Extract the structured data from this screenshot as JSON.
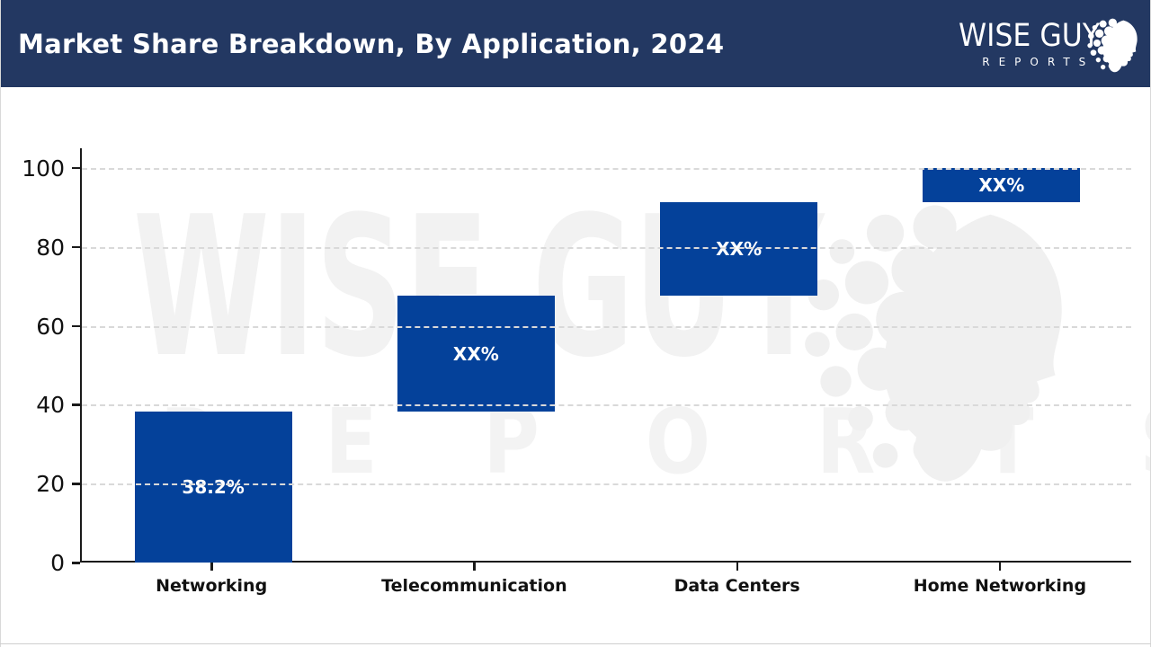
{
  "header": {
    "title": "Market Share Breakdown, By Application, 2024",
    "bg_color": "#233862",
    "logo": {
      "line1": "WISE GUY",
      "line2": "REPORTS"
    }
  },
  "watermark": {
    "line1": "WISE GUY",
    "line2": "REPORTS"
  },
  "chart_data": {
    "type": "bar",
    "variant": "floating-waterfall",
    "title": "Market Share Breakdown, By Application, 2024",
    "categories": [
      "Networking",
      "Telecommunication",
      "Data Centers",
      "Home Networking"
    ],
    "segments": [
      {
        "category": "Networking",
        "start": 0,
        "end": 38.2,
        "label": "38.2%"
      },
      {
        "category": "Telecommunication",
        "start": 38.2,
        "end": 67.6,
        "label": "XX%"
      },
      {
        "category": "Data Centers",
        "start": 67.6,
        "end": 91.4,
        "label": "XX%"
      },
      {
        "category": "Home Networking",
        "start": 91.4,
        "end": 100,
        "label": "XX%"
      }
    ],
    "y_ticks": [
      0,
      20,
      40,
      60,
      80,
      100
    ],
    "ylim": [
      0,
      105
    ],
    "xlabel": "",
    "ylabel": "",
    "grid": "dashed-horizontal",
    "legend": "none",
    "bar_color": "#04419A",
    "bar_label_color": "#ffffff",
    "gridline_color": "#d9d9d9",
    "axis_color": "#1a1a1a"
  }
}
